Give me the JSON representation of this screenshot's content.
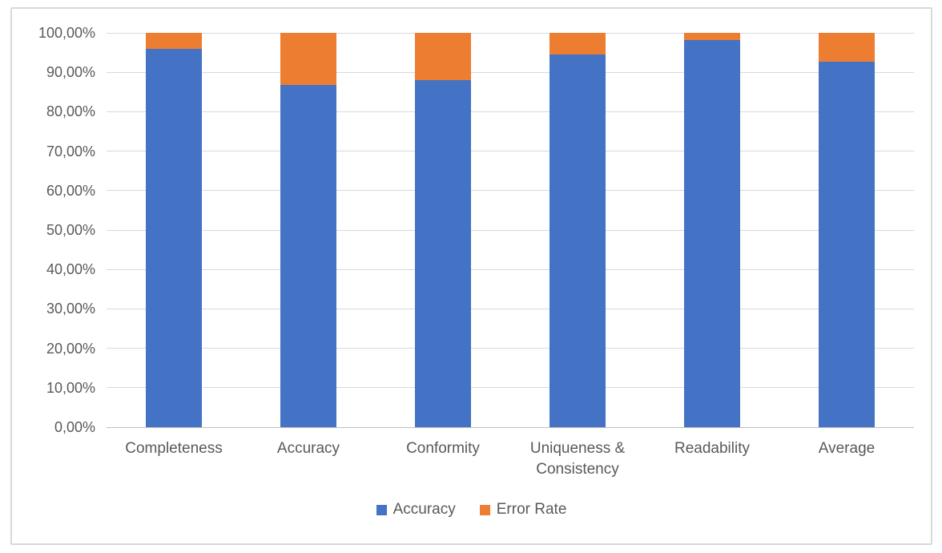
{
  "chart_data": {
    "type": "bar",
    "stacked": true,
    "title": "",
    "xlabel": "",
    "ylabel": "",
    "categories": [
      "Completeness",
      "Accuracy",
      "Conformity",
      "Uniqueness & Consistency",
      "Readability",
      "Average"
    ],
    "series": [
      {
        "name": "Accuracy",
        "color": "#4472C4",
        "values": [
          96.0,
          86.7,
          88.0,
          94.5,
          98.2,
          92.7
        ]
      },
      {
        "name": "Error Rate",
        "color": "#ED7D31",
        "values": [
          4.0,
          13.3,
          12.0,
          5.5,
          1.8,
          7.3
        ]
      }
    ],
    "ylim": [
      0,
      100
    ],
    "y_ticks": [
      {
        "value": 0,
        "label": "0,00%"
      },
      {
        "value": 10,
        "label": "10,00%"
      },
      {
        "value": 20,
        "label": "20,00%"
      },
      {
        "value": 30,
        "label": "30,00%"
      },
      {
        "value": 40,
        "label": "40,00%"
      },
      {
        "value": 50,
        "label": "50,00%"
      },
      {
        "value": 60,
        "label": "60,00%"
      },
      {
        "value": 70,
        "label": "70,00%"
      },
      {
        "value": 80,
        "label": "80,00%"
      },
      {
        "value": 90,
        "label": "90,00%"
      },
      {
        "value": 100,
        "label": "100,00%"
      }
    ],
    "grid": true,
    "legend_position": "bottom"
  },
  "style": {
    "accuracy_bar_color": "#4472C4",
    "error_rate_bar_color": "#ED7D31",
    "gridline_color": "#D9D9D9",
    "axis_line_color": "#BFBFBF",
    "text_color": "#595959",
    "frame_border_color": "#D9D9D9",
    "background_color": "#FFFFFF"
  }
}
